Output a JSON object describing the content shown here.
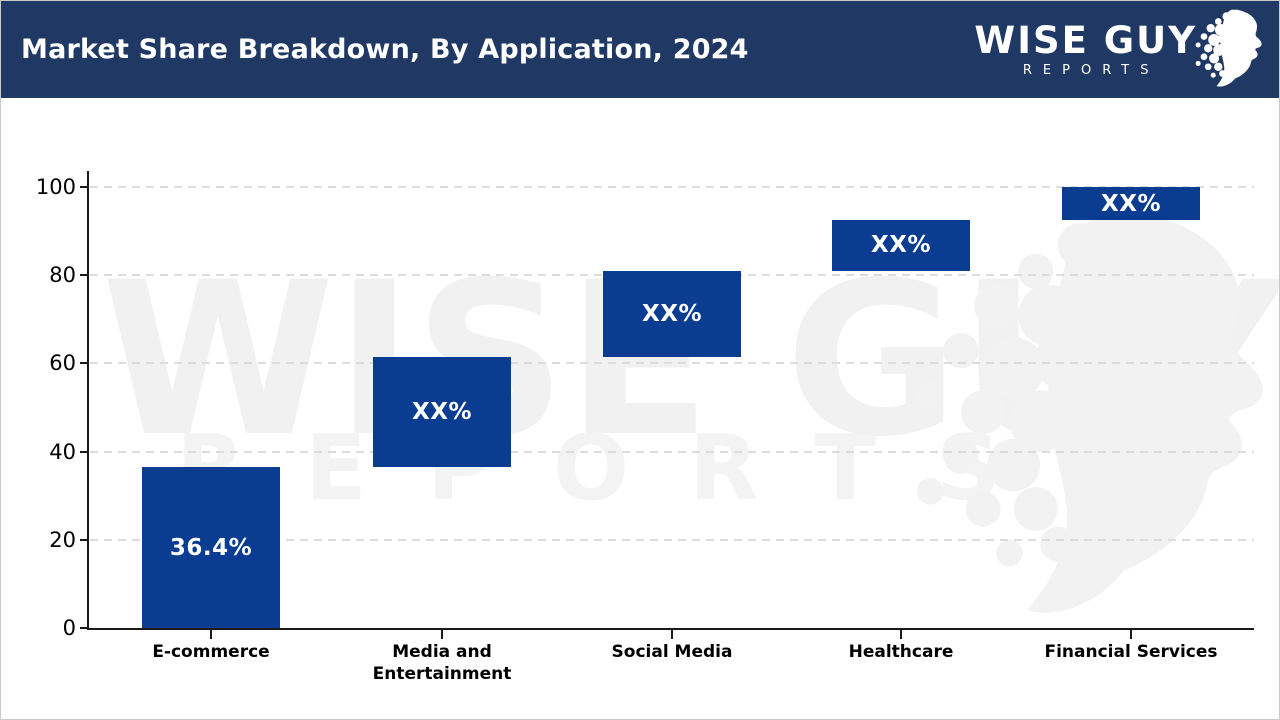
{
  "header": {
    "title": "Market Share Breakdown, By Application, 2024",
    "background_color": "#1f3864",
    "logo": {
      "wordmark": "WISE GUY",
      "subtext": "REPORTS"
    }
  },
  "watermark": {
    "line1": "WISE GUY",
    "line2": "REPORTS"
  },
  "chart_data": {
    "type": "bar",
    "variant": "waterfall",
    "title": "Market Share Breakdown, By Application, 2024",
    "xlabel": "",
    "ylabel": "",
    "ylim": [
      0,
      104
    ],
    "yticks": [
      0,
      20,
      40,
      60,
      80,
      100
    ],
    "grid": "horizontal-dashed",
    "legend": "none",
    "bar_color": "#0a3d91",
    "bar_label_color": "#ffffff",
    "categories": [
      "E-commerce",
      "Media and Entertainment",
      "Social Media",
      "Healthcare",
      "Financial Services"
    ],
    "category_label_lines": [
      [
        "E-commerce"
      ],
      [
        "Media and",
        "Entertainment"
      ],
      [
        "Social Media"
      ],
      [
        "Healthcare"
      ],
      [
        "Financial Services"
      ]
    ],
    "bars": [
      {
        "category": "E-commerce",
        "start": 0,
        "end": 36.4,
        "label": "36.4%"
      },
      {
        "category": "Media and Entertainment",
        "start": 36.4,
        "end": 61.4,
        "label": "XX%"
      },
      {
        "category": "Social Media",
        "start": 61.4,
        "end": 81.0,
        "label": "XX%"
      },
      {
        "category": "Healthcare",
        "start": 81.0,
        "end": 92.5,
        "label": "XX%"
      },
      {
        "category": "Financial Services",
        "start": 92.5,
        "end": 100.0,
        "label": "XX%"
      }
    ]
  }
}
